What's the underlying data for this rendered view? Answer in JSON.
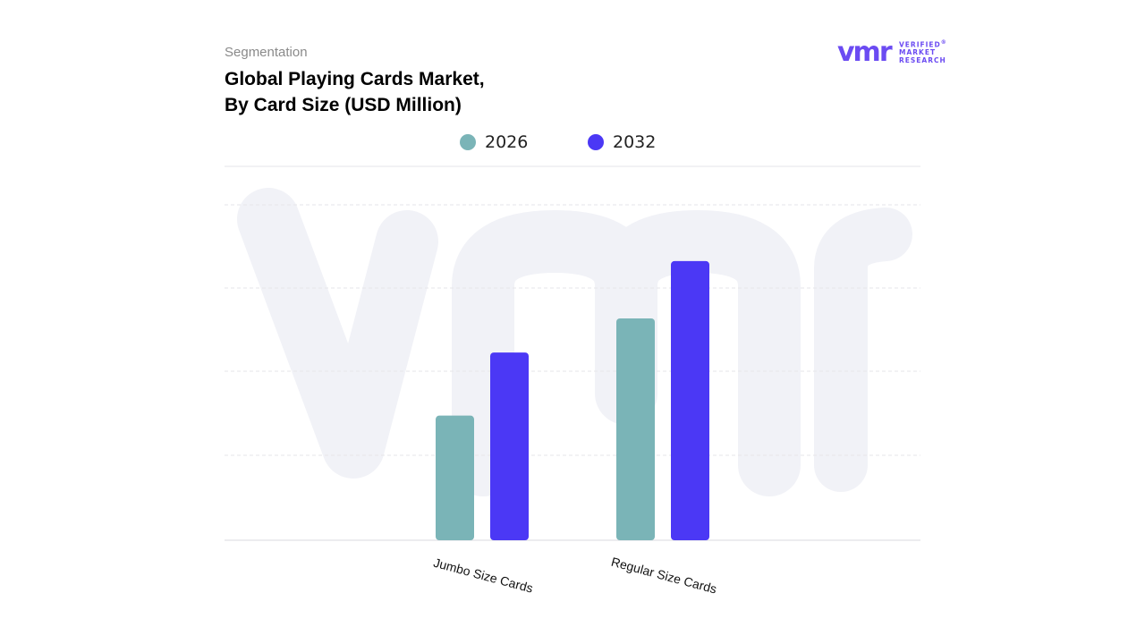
{
  "header": {
    "eyebrow": "Segmentation",
    "title_line1": "Global Playing Cards Market,",
    "title_line2": "By Card Size (USD Million)"
  },
  "logo": {
    "mark": "vmr",
    "line1": "VERIFIED",
    "line2": "MARKET",
    "line3": "RESEARCH",
    "registered": "®"
  },
  "colors": {
    "series_2026": "#7ab4b7",
    "series_2032": "#4b38f5",
    "gridline": "#e6e6ea",
    "watermark": "#f1f2f7",
    "logo": "#6b4bf2"
  },
  "chart_data": {
    "type": "bar",
    "title": "Global Playing Cards Market, By Card Size (USD Million)",
    "categories": [
      "Jumbo Size Cards",
      "Regular Size Cards"
    ],
    "series": [
      {
        "name": "2026",
        "values": [
          1.5,
          2.67
        ]
      },
      {
        "name": "2032",
        "values": [
          2.26,
          3.36
        ]
      }
    ],
    "ylim": [
      0,
      4.5
    ],
    "grid": true,
    "legend": "top-center",
    "xlabel": "",
    "ylabel": ""
  }
}
